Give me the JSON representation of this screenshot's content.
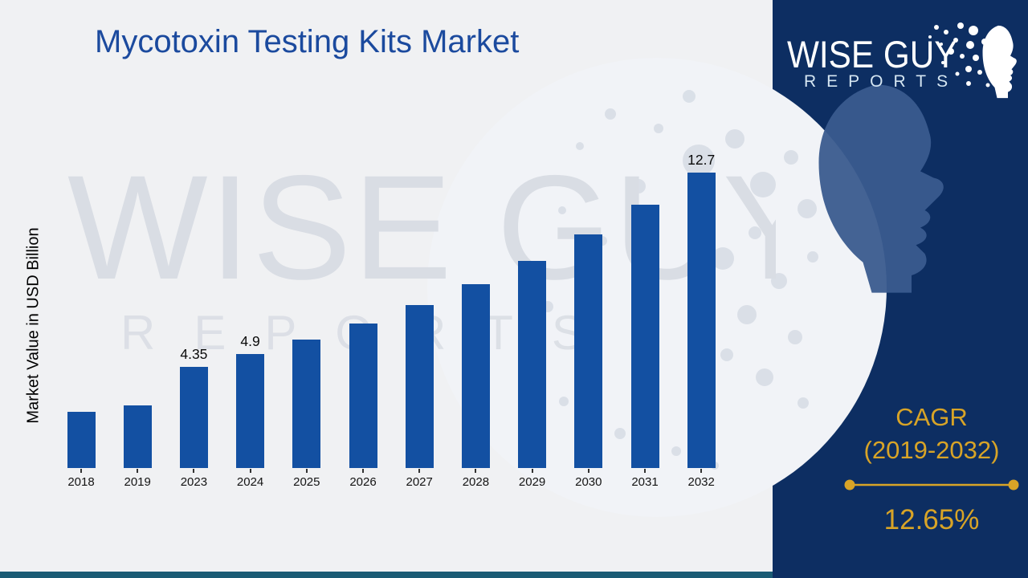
{
  "title": "Mycotoxin Testing Kits Market",
  "watermark": {
    "wordmark": "WISE GUY",
    "reports": "REPORTS"
  },
  "logo": {
    "wordmark": "WISE GUY",
    "reports": "REPORTS"
  },
  "cagr": {
    "title": "CAGR",
    "range": "(2019-2032)",
    "value": "12.65%"
  },
  "colors": {
    "background": "#f0f1f3",
    "navy": "#0d2e62",
    "bar": "#1350a2",
    "gold": "#d8a427",
    "teal": "#1a5b74",
    "title_text": "#1b4a9e",
    "watermark_text": "#d9dde4",
    "face_silhouette": "#3a5b8e",
    "circle_fill": "#f1f3f7",
    "dot_gray": "#ccd3de"
  },
  "chart_data": {
    "type": "bar",
    "title": "Mycotoxin Testing Kits Market",
    "xlabel": "",
    "ylabel": "Market Value in USD Billion",
    "categories": [
      "2018",
      "2019",
      "2023",
      "2024",
      "2025",
      "2026",
      "2027",
      "2028",
      "2029",
      "2030",
      "2031",
      "2032"
    ],
    "values": [
      2.4,
      2.7,
      4.35,
      4.9,
      5.52,
      6.22,
      7.0,
      7.9,
      8.9,
      10.05,
      11.3,
      12.7
    ],
    "bar_labels": [
      "",
      "",
      "4.35",
      "4.9",
      "",
      "",
      "",
      "",
      "",
      "",
      "",
      "12.7"
    ],
    "ylim": [
      0,
      13.5
    ],
    "grid": false,
    "legend_position": "none"
  }
}
